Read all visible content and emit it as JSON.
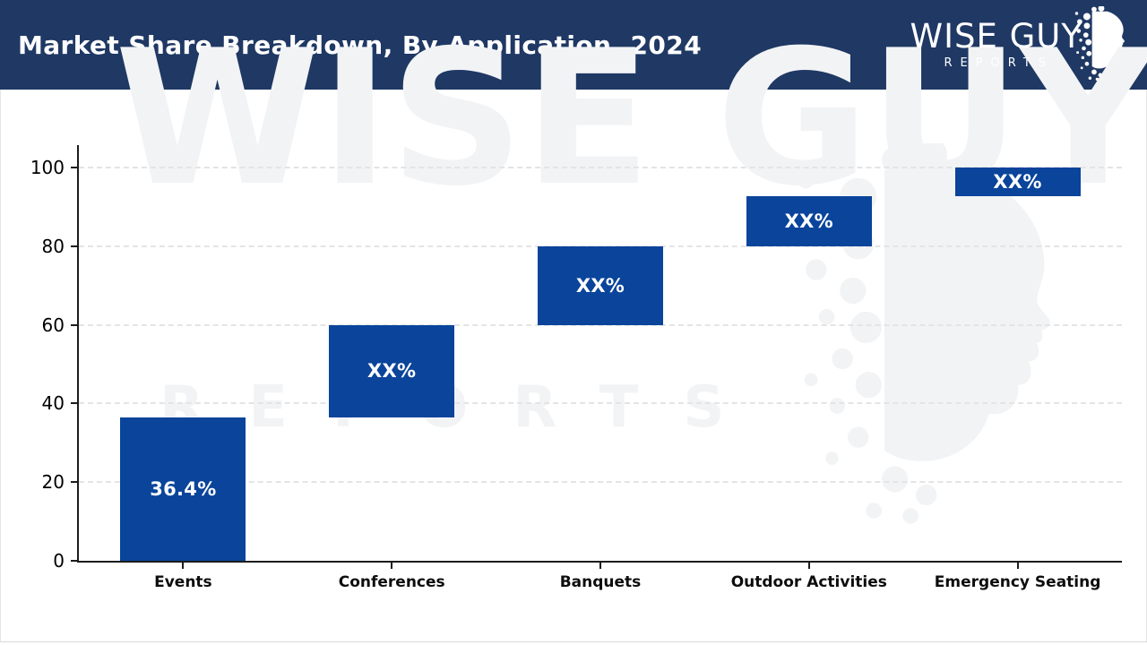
{
  "header": {
    "title": "Market Share Breakdown, By Application, 2024",
    "logo": {
      "name": "WISE GUY",
      "sub": "REPORTS"
    }
  },
  "watermark": {
    "line1": "WISE GUY",
    "line2": "REPORTS"
  },
  "chart_data": {
    "type": "bar",
    "subtype": "waterfall",
    "title": "Market Share Breakdown, By Application, 2024",
    "categories": [
      "Events",
      "Conferences",
      "Banquets",
      "Outdoor Activities",
      "Emergency Seating"
    ],
    "segments": [
      {
        "category": "Events",
        "start": 0,
        "end": 36.4,
        "label": "36.4%"
      },
      {
        "category": "Conferences",
        "start": 36.4,
        "end": 60,
        "label": "XX%"
      },
      {
        "category": "Banquets",
        "start": 60,
        "end": 80,
        "label": "XX%"
      },
      {
        "category": "Outdoor Activities",
        "start": 80,
        "end": 92.7,
        "label": "XX%"
      },
      {
        "category": "Emergency Seating",
        "start": 92.7,
        "end": 100,
        "label": "XX%"
      }
    ],
    "yticks": [
      0,
      20,
      40,
      60,
      80,
      100
    ],
    "ylim": [
      0,
      106
    ],
    "xlabel": "",
    "ylabel": "",
    "grid": "horizontal-dashed",
    "legend": null,
    "colors": {
      "bar": "#0a449b",
      "header_background": "#1f3864",
      "bar_value_text": "#ffffff",
      "gridline": "#e4e4e4",
      "axis": "#1c1c1c",
      "watermark": "#f2f3f5"
    }
  }
}
